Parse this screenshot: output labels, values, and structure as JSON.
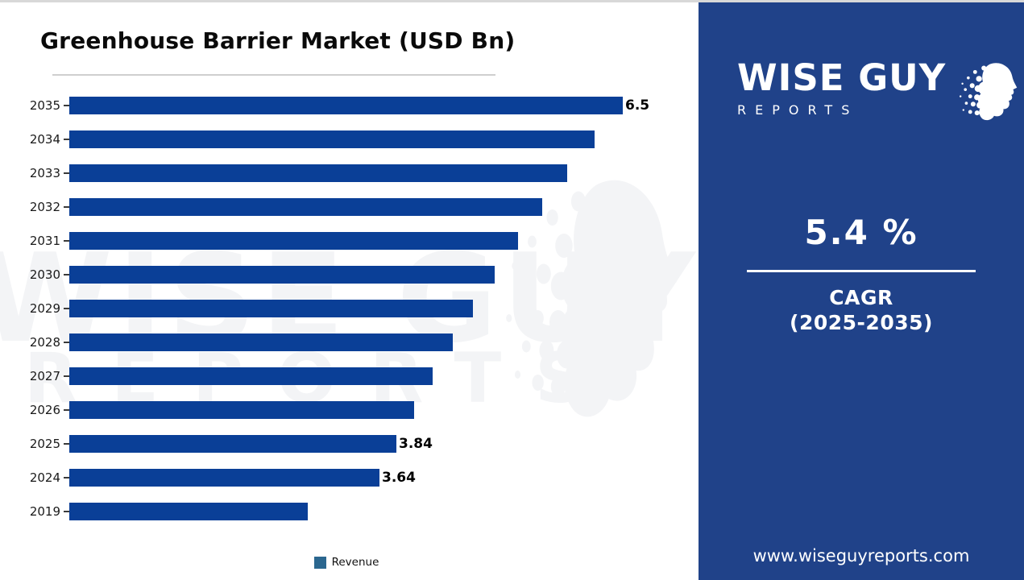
{
  "page_title": "Greenhouse Barrier Market (USD Bn)",
  "chart_data": {
    "type": "bar",
    "orientation": "horizontal",
    "title": "Greenhouse Barrier Market (USD Bn)",
    "categories": [
      "2035",
      "2034",
      "2033",
      "2032",
      "2031",
      "2030",
      "2029",
      "2028",
      "2027",
      "2026",
      "2025",
      "2024",
      "2019"
    ],
    "values": [
      6.5,
      6.17,
      5.85,
      5.55,
      5.27,
      5.0,
      4.74,
      4.5,
      4.27,
      4.05,
      3.84,
      3.64,
      2.8
    ],
    "data_labels": [
      "6.5",
      "",
      "",
      "",
      "",
      "",
      "",
      "",
      "",
      "",
      "3.84",
      "3.64",
      ""
    ],
    "xlabel": "",
    "ylabel": "",
    "xlim": [
      0,
      6.9
    ],
    "grid": false,
    "bar_color": "#0a3f97",
    "legend_position": "bottom-center",
    "legend": [
      {
        "label": "Revenue",
        "color": "#2b678f"
      }
    ]
  },
  "watermark": {
    "line1": "WISE GUY",
    "line2": "REPORTS"
  },
  "sidebar": {
    "bg_color": "#204289",
    "logo_line1": "WISE GUY",
    "logo_line2": "REPORTS",
    "cagr_value": "5.4 %",
    "cagr_line1": "CAGR",
    "cagr_line2": "(2025-2035)",
    "website": "www.wiseguyreports.com"
  }
}
